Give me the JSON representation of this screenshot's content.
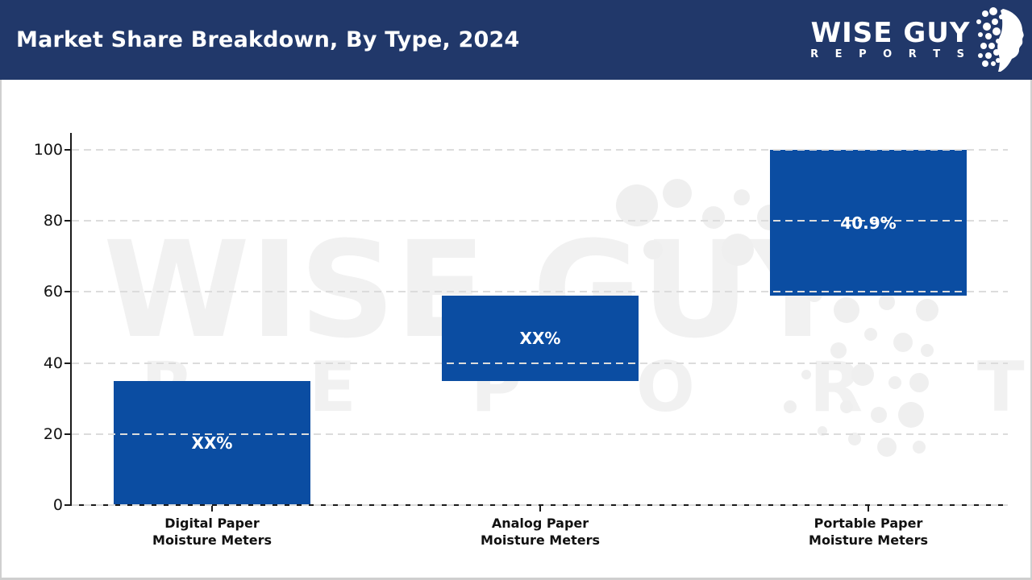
{
  "header": {
    "title": "Market Share Breakdown, By Type, 2024",
    "bg_color": "#21386a",
    "logo": {
      "line1": "WISE GUY",
      "line2": "R E P O R T S"
    }
  },
  "watermark": {
    "line1": "WISE GUY",
    "line2": "R E P O R T S"
  },
  "chart_data": {
    "type": "bar",
    "variant": "floating-waterfall",
    "title": "Market Share Breakdown, By Type, 2024",
    "categories": [
      [
        "Digital Paper",
        "Moisture Meters"
      ],
      [
        "Analog Paper",
        "Moisture Meters"
      ],
      [
        "Portable Paper",
        "Moisture Meters"
      ]
    ],
    "segments": [
      {
        "start": 0,
        "end": 35,
        "label": "XX%"
      },
      {
        "start": 35,
        "end": 59,
        "label": "XX%"
      },
      {
        "start": 59,
        "end": 99.9,
        "label": "40.9%"
      }
    ],
    "yticks": [
      0,
      20,
      40,
      60,
      80,
      100
    ],
    "ylim": [
      0,
      104.8
    ],
    "grid": true,
    "legend": null,
    "bar_color": "#0b4da2",
    "gridline_color": "#dcdcdc",
    "value_label_color": "#ffffff"
  }
}
